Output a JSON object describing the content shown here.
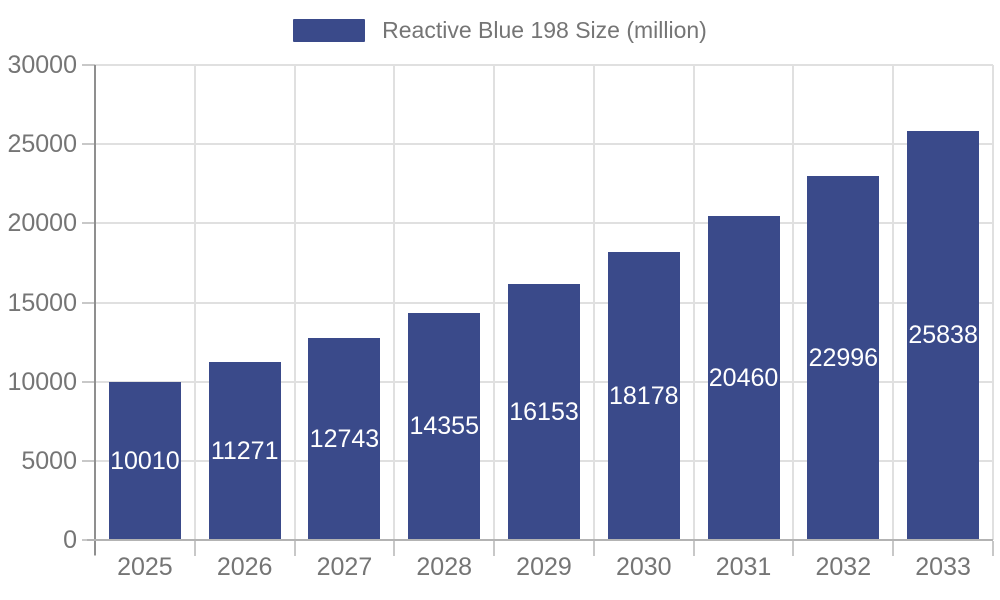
{
  "chart_data": {
    "type": "bar",
    "title": "",
    "categories": [
      "2025",
      "2026",
      "2027",
      "2028",
      "2029",
      "2030",
      "2031",
      "2032",
      "2033"
    ],
    "series": [
      {
        "name": "Reactive Blue 198 Size (million)",
        "values": [
          10010,
          11271,
          12743,
          14355,
          16153,
          18178,
          20460,
          22996,
          25838
        ]
      }
    ],
    "value_labels_shown": true,
    "xlabel": "",
    "ylabel": "",
    "ylim": [
      0,
      30000
    ],
    "yticks": [
      0,
      5000,
      10000,
      15000,
      20000,
      25000,
      30000
    ],
    "grid": true,
    "legend_position": "top-center",
    "colors": {
      "bar": "#3A4A8A",
      "bar_value_label": "#FFFFFF",
      "axis_text": "#757575",
      "legend_text": "#757575",
      "gridline": "#E0E0E0",
      "axis_line_y": "#8F8F8F",
      "axis_line_x": "#B3B3B3",
      "tick": "#C8C8C8"
    }
  }
}
